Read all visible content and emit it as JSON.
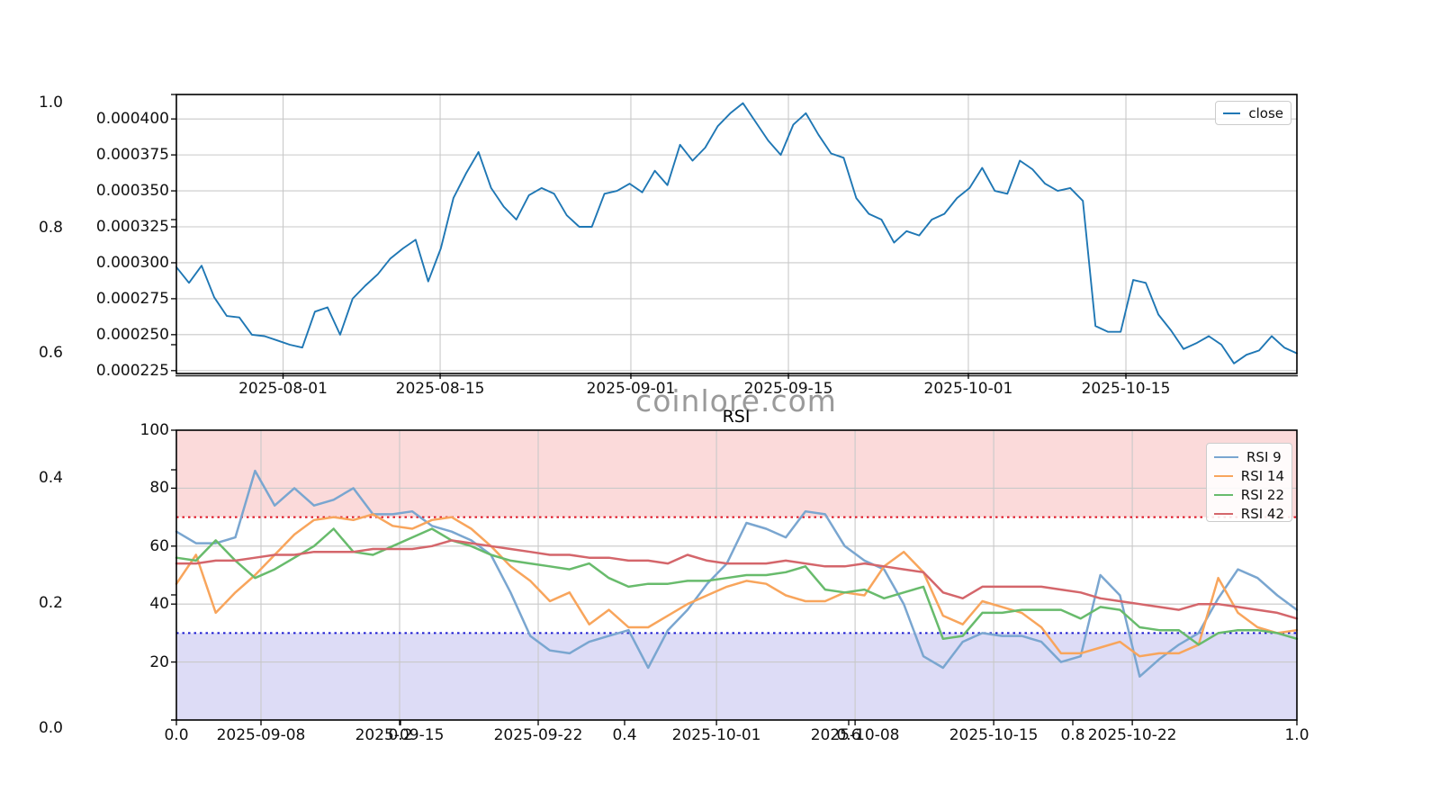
{
  "watermark": "coinlore.com",
  "titles": {
    "rsi": "RSI"
  },
  "colors": {
    "close": "#1f77b4",
    "rsi9": "#7aa6d0",
    "rsi14": "#f8a55c",
    "rsi22": "#68bb6c",
    "rsi42": "#d4666b",
    "overbought_band": "#fbdada",
    "oversold_band": "#dddcf6",
    "overbought_line": "#dd1020",
    "oversold_line": "#1a1ad0",
    "grid": "#c9c9c9",
    "spine": "#000000",
    "watermark_gray": "#9a9a9a"
  },
  "fraction_axis": {
    "left_labels": [
      "1.0",
      "0.8",
      "0.6",
      "0.4",
      "0.2",
      "0.0"
    ],
    "bottom_labels": [
      "0.0",
      "0.2",
      "0.4",
      "0.6",
      "0.8",
      "1.0"
    ]
  },
  "chart_data": [
    {
      "type": "line",
      "name": "price",
      "title": "",
      "legend_position": "upper right",
      "grid": true,
      "value_unit": "1e-6",
      "ylim": [
        223,
        417
      ],
      "y_ticks": [
        {
          "label": "0.000400",
          "v": 400
        },
        {
          "label": "0.000375",
          "v": 375
        },
        {
          "label": "0.000350",
          "v": 350
        },
        {
          "label": "0.000325",
          "v": 325
        },
        {
          "label": "0.000300",
          "v": 300
        },
        {
          "label": "0.000275",
          "v": 275
        },
        {
          "label": "0.000250",
          "v": 250
        },
        {
          "label": "0.000225",
          "v": 225
        }
      ],
      "x_ticks": [
        {
          "label": "2025-08-01",
          "f": 0.0952
        },
        {
          "label": "2025-08-15",
          "f": 0.2354
        },
        {
          "label": "2025-09-01",
          "f": 0.4056
        },
        {
          "label": "2025-09-15",
          "f": 0.5462
        },
        {
          "label": "2025-10-01",
          "f": 0.7068
        },
        {
          "label": "2025-10-15",
          "f": 0.8474
        }
      ],
      "series": [
        {
          "name": "close",
          "color_key": "close",
          "width": 1.9,
          "values": [
            297,
            286,
            298,
            276,
            263,
            262,
            250,
            249,
            246,
            243,
            241,
            266,
            269,
            250,
            275,
            284,
            292,
            303,
            310,
            316,
            287,
            310,
            345,
            362,
            377,
            352,
            339,
            330,
            347,
            352,
            348,
            333,
            325,
            325,
            348,
            350,
            355,
            349,
            364,
            354,
            382,
            371,
            380,
            395,
            404,
            411,
            398,
            385,
            375,
            396,
            404,
            389,
            376,
            373,
            345,
            334,
            330,
            314,
            322,
            319,
            330,
            334,
            345,
            352,
            366,
            350,
            348,
            371,
            365,
            355,
            350,
            352,
            343,
            256,
            252,
            252,
            288,
            286,
            264,
            253,
            240,
            244,
            249,
            243,
            230,
            236,
            239,
            249,
            241,
            237
          ]
        }
      ]
    },
    {
      "type": "line",
      "name": "rsi",
      "title": "RSI",
      "legend_position": "upper right",
      "grid": true,
      "ylim": [
        0,
        100
      ],
      "bands": [
        {
          "from": 70,
          "to": 100,
          "color_key": "overbought_band"
        },
        {
          "from": 0,
          "to": 30,
          "color_key": "oversold_band"
        }
      ],
      "threshold_lines": [
        {
          "v": 70,
          "color_key": "overbought_line"
        },
        {
          "v": 30,
          "color_key": "oversold_line"
        }
      ],
      "y_ticks": [
        {
          "label": "100",
          "v": 100
        },
        {
          "label": "80",
          "v": 80
        },
        {
          "label": "60",
          "v": 60
        },
        {
          "label": "40",
          "v": 40
        },
        {
          "label": "20",
          "v": 20
        }
      ],
      "x_ticks": [
        {
          "label": "2025-09-08",
          "f": 0.0755
        },
        {
          "label": "2025-09-15",
          "f": 0.1992
        },
        {
          "label": "2025-09-22",
          "f": 0.3229
        },
        {
          "label": "2025-10-01",
          "f": 0.482
        },
        {
          "label": "2025-10-08",
          "f": 0.6057
        },
        {
          "label": "2025-10-15",
          "f": 0.7294
        },
        {
          "label": "2025-10-22",
          "f": 0.8531
        }
      ],
      "series": [
        {
          "name": "RSI 9",
          "color_key": "rsi9",
          "width": 2.5,
          "values": [
            65,
            61,
            61,
            63,
            86,
            74,
            80,
            74,
            76,
            80,
            71,
            71,
            72,
            67,
            65,
            62,
            57,
            44,
            29,
            24,
            23,
            27,
            29,
            31,
            18,
            31,
            38,
            47,
            54,
            68,
            66,
            63,
            72,
            71,
            60,
            55,
            52,
            40,
            22,
            18,
            27,
            30,
            29,
            29,
            27,
            20,
            22,
            50,
            43,
            15,
            21,
            26,
            30,
            42,
            52,
            49,
            43,
            38
          ]
        },
        {
          "name": "RSI 14",
          "color_key": "rsi14",
          "width": 2.5,
          "values": [
            47,
            57,
            37,
            44,
            50,
            57,
            64,
            69,
            70,
            69,
            71,
            67,
            66,
            69,
            70,
            66,
            60,
            53,
            48,
            41,
            44,
            33,
            38,
            32,
            32,
            36,
            40,
            43,
            46,
            48,
            47,
            43,
            41,
            41,
            44,
            43,
            53,
            58,
            51,
            36,
            33,
            41,
            39,
            37,
            32,
            23,
            23,
            25,
            27,
            22,
            23,
            23,
            26,
            49,
            37,
            32,
            30,
            31
          ]
        },
        {
          "name": "RSI 22",
          "color_key": "rsi22",
          "width": 2.5,
          "values": [
            56,
            55,
            62,
            55,
            49,
            52,
            56,
            60,
            66,
            58,
            57,
            60,
            63,
            66,
            62,
            60,
            57,
            55,
            54,
            53,
            52,
            54,
            49,
            46,
            47,
            47,
            48,
            48,
            49,
            50,
            50,
            51,
            53,
            45,
            44,
            45,
            42,
            44,
            46,
            28,
            29,
            37,
            37,
            38,
            38,
            38,
            35,
            39,
            38,
            32,
            31,
            31,
            26,
            30,
            31,
            31,
            30,
            28
          ]
        },
        {
          "name": "RSI 42",
          "color_key": "rsi42",
          "width": 2.5,
          "values": [
            54,
            54,
            55,
            55,
            56,
            57,
            57,
            58,
            58,
            58,
            59,
            59,
            59,
            60,
            62,
            61,
            60,
            59,
            58,
            57,
            57,
            56,
            56,
            55,
            55,
            54,
            57,
            55,
            54,
            54,
            54,
            55,
            54,
            53,
            53,
            54,
            53,
            52,
            51,
            44,
            42,
            46,
            46,
            46,
            46,
            45,
            44,
            42,
            41,
            40,
            39,
            38,
            40,
            40,
            39,
            38,
            37,
            35
          ]
        }
      ]
    }
  ]
}
